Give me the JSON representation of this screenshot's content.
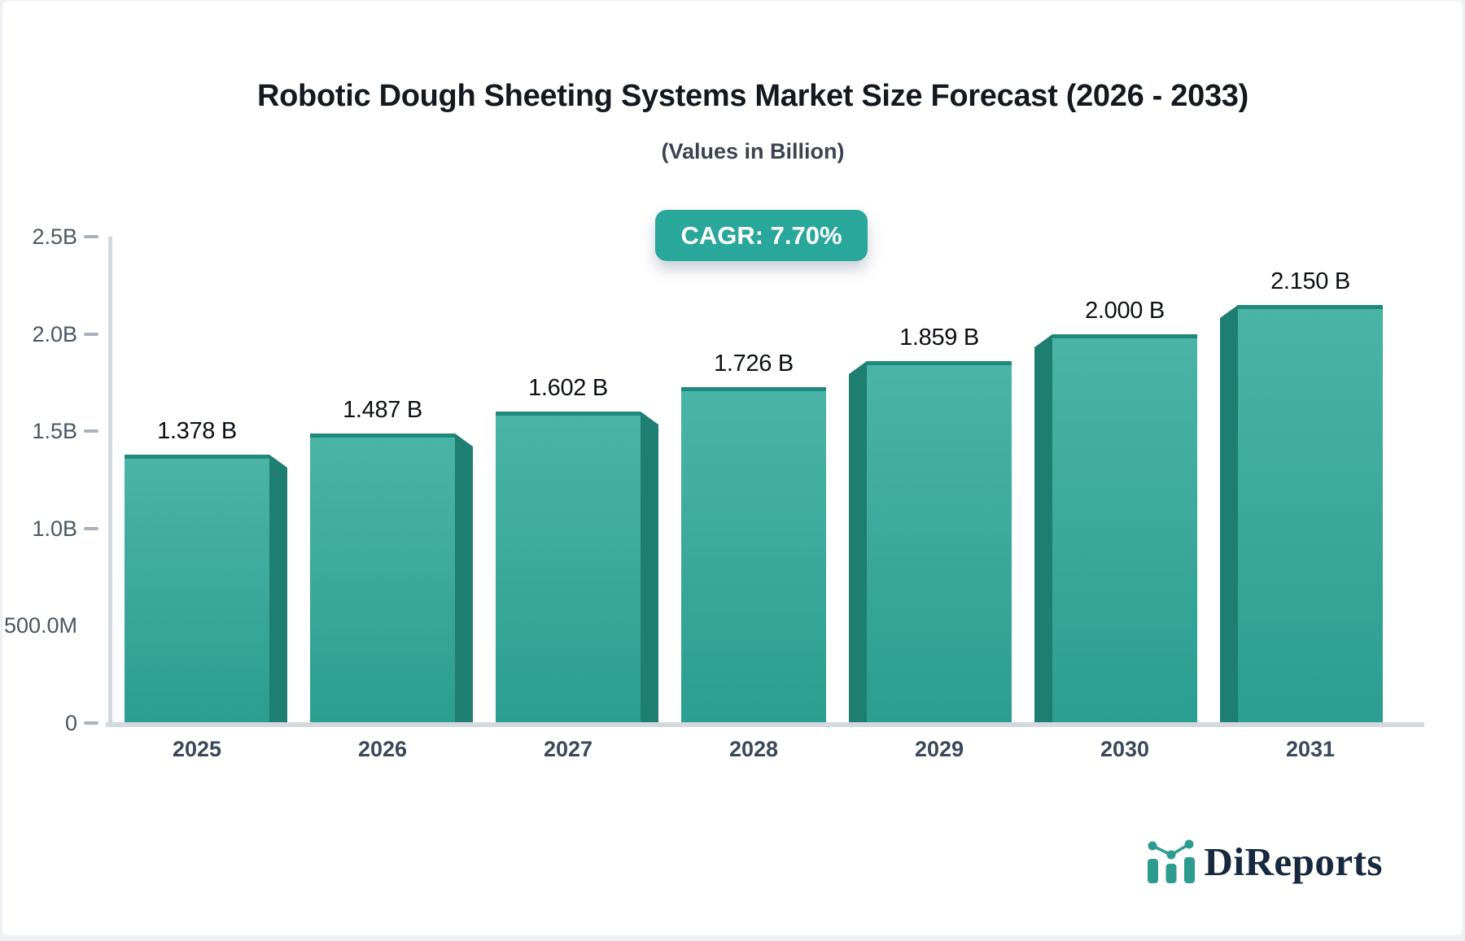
{
  "page": {
    "background": "#eef0f4",
    "card_background": "#ffffff"
  },
  "header": {
    "title": "Robotic Dough Sheeting Systems Market Size Forecast (2026 - 2033)",
    "subtitle": "(Values in Billion)"
  },
  "cagr_badge": {
    "label": "CAGR: 7.70%",
    "background": "#2aa79b",
    "text_color": "#ffffff"
  },
  "chart_data": {
    "type": "bar",
    "title": "Robotic Dough Sheeting Systems Market Size Forecast (2026 - 2033)",
    "subtitle": "(Values in Billion)",
    "xlabel": "",
    "ylabel": "",
    "ylim": [
      0,
      2.5
    ],
    "grid": false,
    "legend": false,
    "annotation": "CAGR: 7.70%",
    "categories": [
      "2025",
      "2026",
      "2027",
      "2028",
      "2029",
      "2030",
      "2031"
    ],
    "values": [
      1.378,
      1.487,
      1.602,
      1.726,
      1.859,
      2.0,
      2.15
    ],
    "value_labels": [
      "1.378 B",
      "1.487 B",
      "1.602 B",
      "1.726 B",
      "1.859 B",
      "2.000 B",
      "2.150 B"
    ],
    "y_ticks": [
      {
        "value": 0,
        "label": "0",
        "dash": true
      },
      {
        "value": 0.5,
        "label": "500.0M",
        "dash": false
      },
      {
        "value": 1.0,
        "label": "1.0B",
        "dash": true
      },
      {
        "value": 1.5,
        "label": "1.5B",
        "dash": true
      },
      {
        "value": 2.0,
        "label": "2.0B",
        "dash": true
      },
      {
        "value": 2.5,
        "label": "2.5B",
        "dash": true
      }
    ],
    "bar_style": {
      "face_gradient_top": "#4ab4a6",
      "face_gradient_bottom": "#2b9e91",
      "top_rim": "#20897b",
      "side": "#1f7e72",
      "side_direction_by_index": [
        "right",
        "right",
        "right",
        "none",
        "left",
        "left",
        "left"
      ]
    },
    "axis_style": {
      "axis_line": "#d4d8df",
      "tick_dash": "#aab1bc",
      "tick_label_color": "#4b5663",
      "x_label_color": "#3c4859",
      "value_label_color": "#0c1016"
    }
  },
  "logo": {
    "text": "DiReports",
    "icon": "mini-bar-chart-icon",
    "icon_color": "#2d9c8f",
    "text_color": "#17293e"
  }
}
